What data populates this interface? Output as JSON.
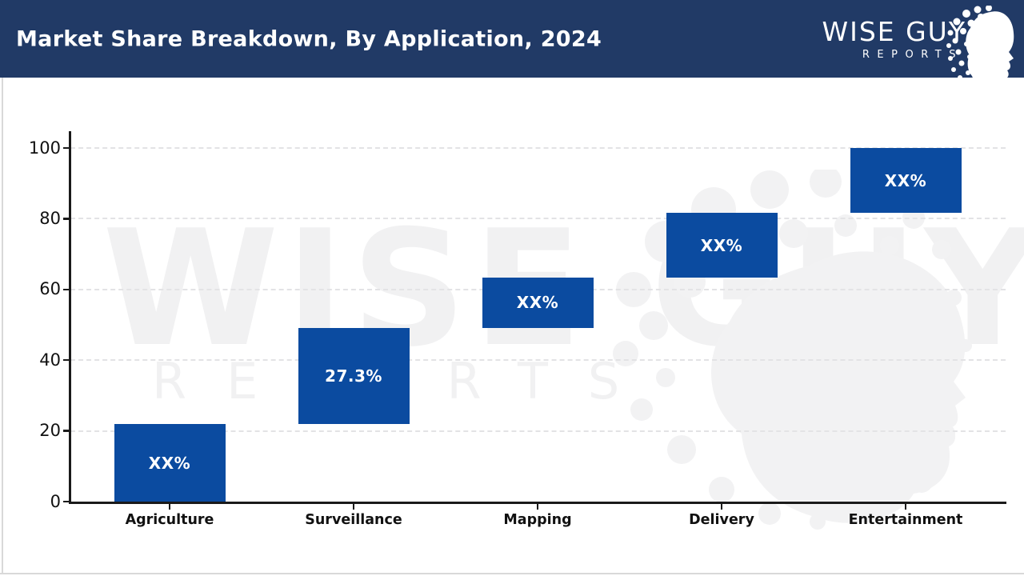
{
  "header": {
    "title": "Market Share Breakdown, By Application, 2024",
    "bg_color": "#213a66",
    "logo": {
      "line1": "WISE GUY",
      "line2": "REPORTS"
    }
  },
  "watermark": {
    "line1": "WISE GUY",
    "line2": "REPORTS"
  },
  "chart_data": {
    "type": "bar",
    "subtype": "waterfall-floating-bars",
    "title": "Market Share Breakdown, By Application, 2024",
    "xlabel": "",
    "ylabel": "",
    "categories": [
      "Agriculture",
      "Surveillance",
      "Mapping",
      "Delivery",
      "Entertainment"
    ],
    "segments": [
      {
        "category": "Agriculture",
        "start": 0,
        "end": 21.9,
        "label": "XX%"
      },
      {
        "category": "Surveillance",
        "start": 21.9,
        "end": 49.2,
        "label": "27.3%"
      },
      {
        "category": "Mapping",
        "start": 49.2,
        "end": 63.4,
        "label": "XX%"
      },
      {
        "category": "Delivery",
        "start": 63.4,
        "end": 81.6,
        "label": "XX%"
      },
      {
        "category": "Entertainment",
        "start": 81.6,
        "end": 100,
        "label": "XX%"
      }
    ],
    "y_ticks": [
      0,
      20,
      40,
      60,
      80,
      100
    ],
    "ylim": [
      0,
      100
    ],
    "grid": "horizontal-dashed",
    "legend": "none",
    "bar_color": "#0b4ba0",
    "bar_label_color": "#ffffff",
    "axis_color": "#1a1a1a"
  }
}
